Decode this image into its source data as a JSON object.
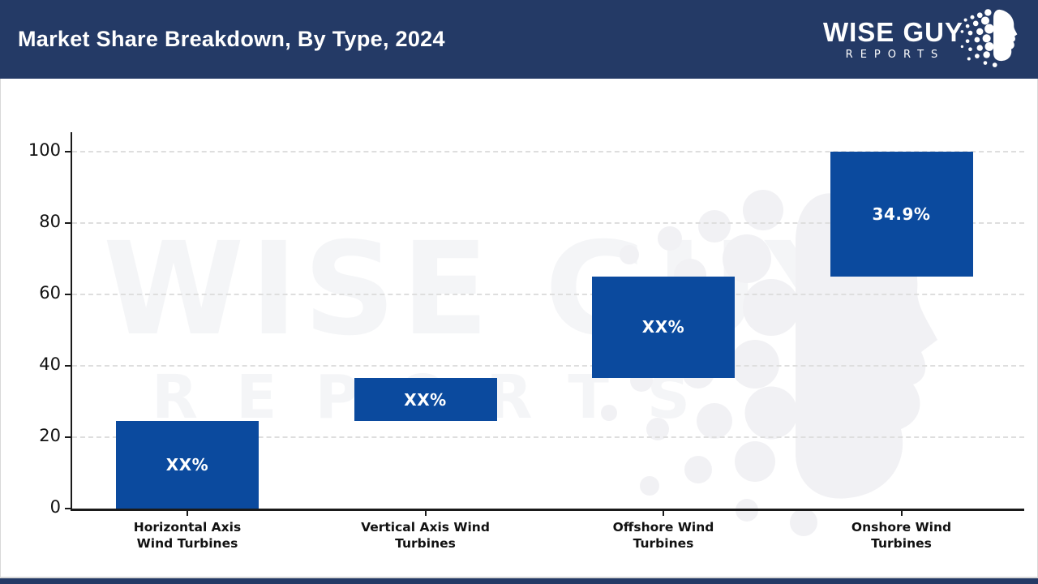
{
  "header": {
    "title": "Market Share Breakdown, By Type, 2024",
    "logo": {
      "brand": "WISE GUY",
      "tagline": "REPORTS"
    }
  },
  "watermark": {
    "brand": "WISE GUY",
    "tagline": "REPORTS"
  },
  "chart_data": {
    "type": "bar",
    "variant": "floating-segment-waterfall",
    "title": "Market Share Breakdown, By Type, 2024",
    "categories": [
      "Horizontal Axis Wind Turbines",
      "Vertical Axis Wind Turbines",
      "Offshore Wind Turbines",
      "Onshore Wind Turbines"
    ],
    "category_lines": [
      [
        "Horizontal Axis",
        "Wind Turbines"
      ],
      [
        "Vertical Axis Wind",
        "Turbines"
      ],
      [
        "Offshore Wind",
        "Turbines"
      ],
      [
        "Onshore Wind",
        "Turbines"
      ]
    ],
    "bars": [
      {
        "category": "Horizontal Axis Wind Turbines",
        "start": 0,
        "end": 24.5,
        "value": 24.5,
        "label": "XX%"
      },
      {
        "category": "Vertical Axis Wind Turbines",
        "start": 24.5,
        "end": 36.5,
        "value": 12.0,
        "label": "XX%"
      },
      {
        "category": "Offshore Wind Turbines",
        "start": 36.5,
        "end": 65.1,
        "value": 28.6,
        "label": "XX%"
      },
      {
        "category": "Onshore Wind Turbines",
        "start": 65.1,
        "end": 100,
        "value": 34.9,
        "label": "34.9%"
      }
    ],
    "xlabel": "",
    "ylabel": "",
    "yticks": [
      0,
      20,
      40,
      60,
      80,
      100
    ],
    "ylim": [
      0,
      105
    ],
    "grid": "horizontal dashed",
    "legend": "none",
    "bar_color": "#0B4A9E",
    "bar_label_color": "#FFFFFF"
  },
  "colors": {
    "header_bg": "#243A66",
    "footer_bg": "#243A66",
    "bar_blue": "#0B4A9E",
    "axis": "#1A1A1A",
    "gridline": "#DCDCDC",
    "page_bg": "#FFFFFF",
    "border": "#D9D9D9"
  }
}
